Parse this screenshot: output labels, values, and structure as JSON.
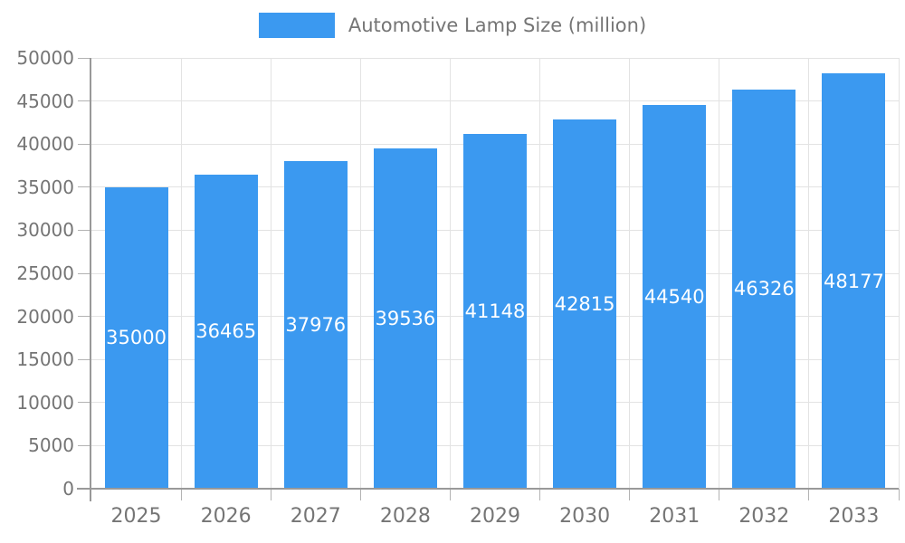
{
  "legend": {
    "label": "Automotive Lamp Size (million)"
  },
  "chart_data": {
    "type": "bar",
    "title": "Automotive Lamp Size (million)",
    "legend_entries": [
      "Automotive Lamp Size (million)"
    ],
    "legend_position": "top",
    "categories": [
      "2025",
      "2026",
      "2027",
      "2028",
      "2029",
      "2030",
      "2031",
      "2032",
      "2033"
    ],
    "values": [
      35000,
      36465,
      37976,
      39536,
      41148,
      42815,
      44540,
      46326,
      48177
    ],
    "data_labels": [
      "35000",
      "36465",
      "37976",
      "39536",
      "41148",
      "42815",
      "44540",
      "46326",
      "48177"
    ],
    "data_labels_inside_bars": true,
    "xlabel": "",
    "ylabel": "",
    "ylim": [
      0,
      50000
    ],
    "y_ticks": [
      0,
      5000,
      10000,
      15000,
      20000,
      25000,
      30000,
      35000,
      40000,
      45000,
      50000
    ],
    "grid": true,
    "colors": {
      "bar": "#3B99F0",
      "bar_label": "#FFFFFF",
      "axis_line": "#999999",
      "tick": "#B3B3B3",
      "gridline": "#E3E3E3",
      "text": "#757575",
      "background": "#FFFFFF"
    }
  }
}
